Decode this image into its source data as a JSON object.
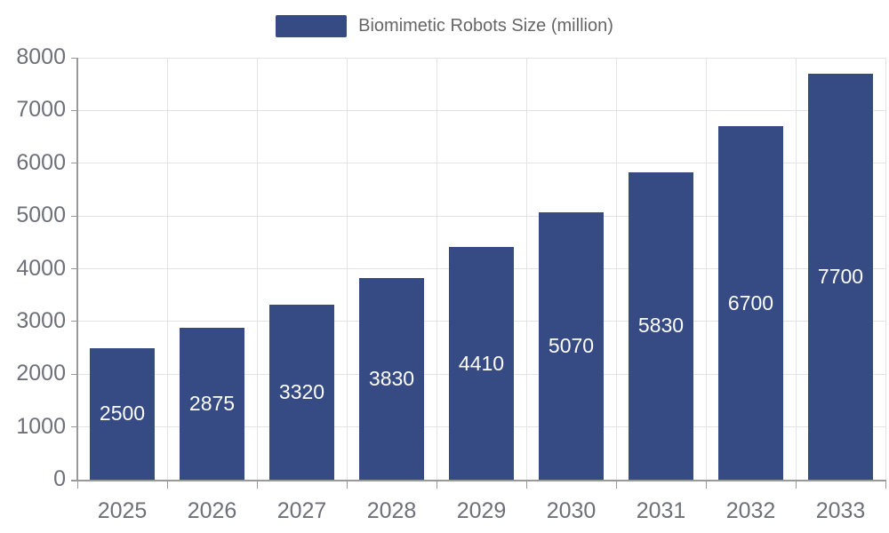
{
  "legend": {
    "label": "Biomimetic Robots Size (million)"
  },
  "colors": {
    "bar": "#364A84",
    "axis_line": "#999999",
    "grid_line": "#E3E3E6",
    "tick_label": "#6E7079",
    "legend_text": "#666666",
    "value_label": "#FFFFFF",
    "background": "#FFFFFF"
  },
  "chart_data": {
    "type": "bar",
    "title": "Biomimetic Robots Size (million)",
    "series_name": "Biomimetic Robots Size (million)",
    "categories": [
      "2025",
      "2026",
      "2027",
      "2028",
      "2029",
      "2030",
      "2031",
      "2032",
      "2033"
    ],
    "values": [
      2500,
      2875,
      3320,
      3830,
      4410,
      5070,
      5830,
      6700,
      7700
    ],
    "xlabel": "",
    "ylabel": "",
    "ylim": [
      0,
      8000
    ],
    "yticks": [
      0,
      1000,
      2000,
      3000,
      4000,
      5000,
      6000,
      7000,
      8000
    ],
    "grid": true,
    "legend_position": "top-center",
    "value_labels": "inside-center"
  }
}
